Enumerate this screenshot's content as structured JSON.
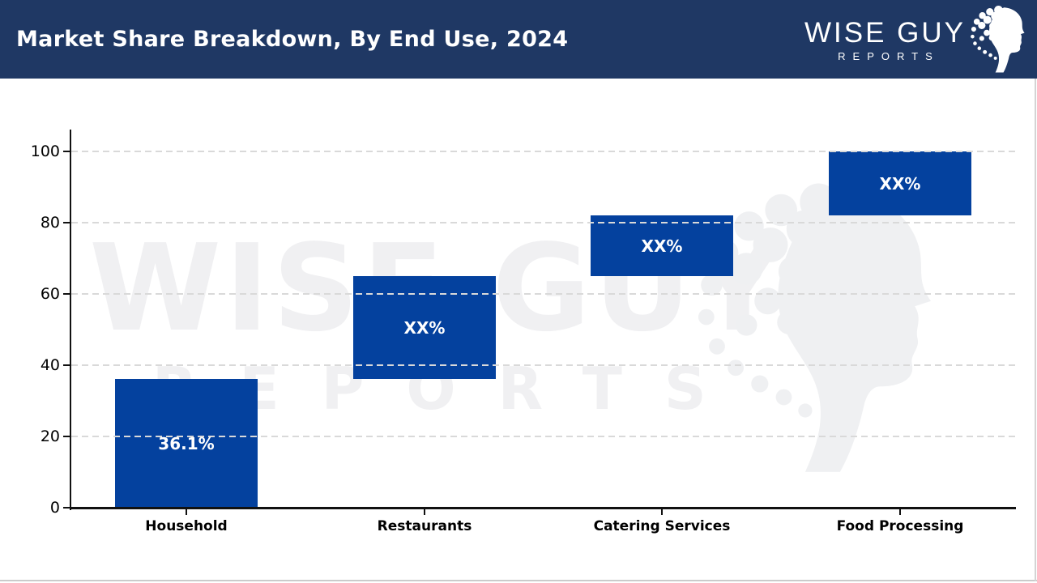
{
  "header": {
    "title": "Market Share Breakdown, By End Use, 2024",
    "brand": {
      "name": "WISE GUY",
      "subtitle": "REPORTS"
    }
  },
  "watermark": {
    "name": "WISE GUY",
    "subtitle": "REPORTS"
  },
  "colors": {
    "header_bg": "#1f3864",
    "bar": "#04419e",
    "bar_label": "#ffffff",
    "gridline": "#d9d9d9",
    "axis": "#111111",
    "watermark": "#f0f0f2"
  },
  "chart_data": {
    "type": "bar",
    "variant": "floating-waterfall",
    "title": "Market Share Breakdown, By End Use, 2024",
    "categories": [
      "Household",
      "Restaurants",
      "Catering Services",
      "Food Processing"
    ],
    "segments": [
      {
        "category": "Household",
        "start": 0,
        "end": 36.1,
        "label": "36.1%"
      },
      {
        "category": "Restaurants",
        "start": 36.1,
        "end": 65,
        "label": "XX%"
      },
      {
        "category": "Catering Services",
        "start": 65,
        "end": 82,
        "label": "XX%"
      },
      {
        "category": "Food Processing",
        "start": 82,
        "end": 100,
        "label": "XX%"
      }
    ],
    "xlabel": "",
    "ylabel": "",
    "ylim": [
      0,
      100
    ],
    "yticks": [
      0,
      20,
      40,
      60,
      80,
      100
    ],
    "grid": "horizontal-dashed",
    "legend": "none",
    "bar_color": "#04419e",
    "label_color": "#ffffff"
  }
}
